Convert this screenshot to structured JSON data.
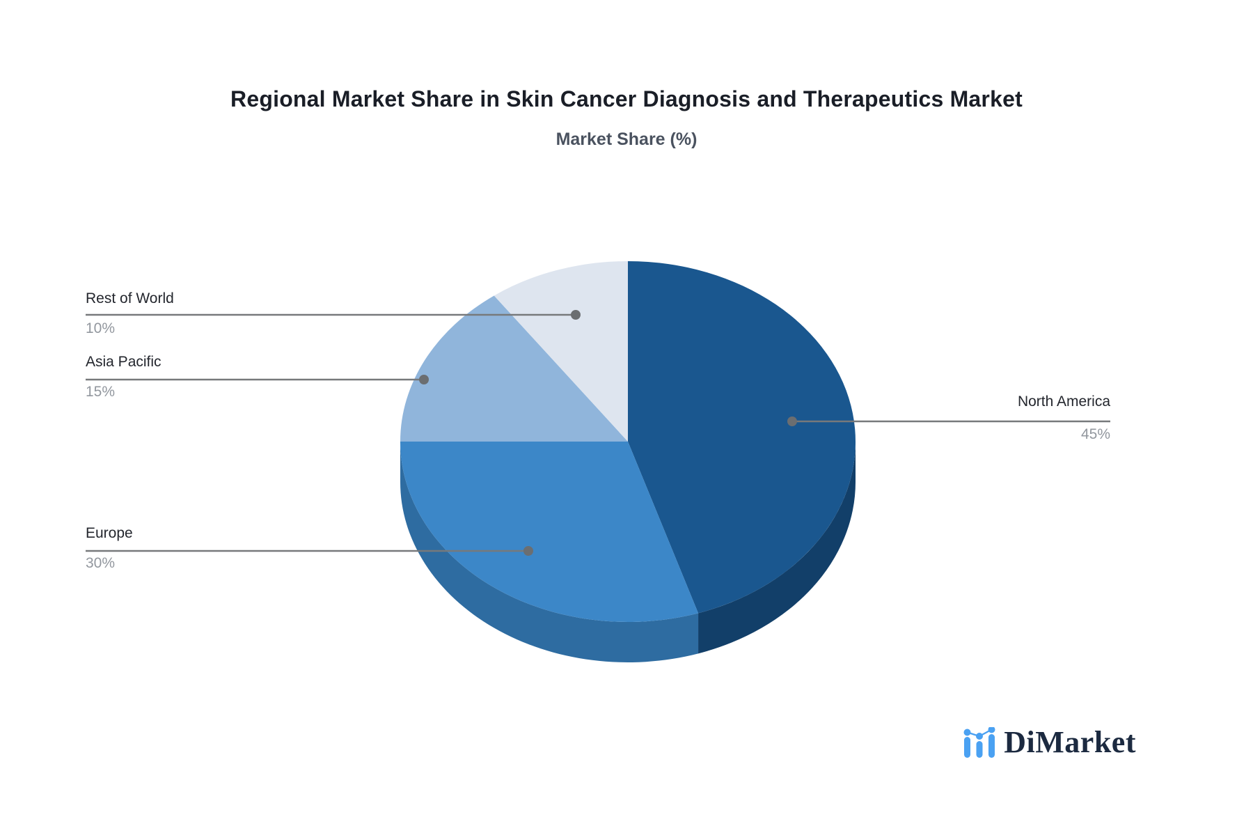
{
  "chart_data": {
    "type": "pie",
    "style": "3d",
    "title": "Regional Market Share in Skin Cancer Diagnosis and Therapeutics Market",
    "subtitle": "Market Share (%)",
    "unit": "%",
    "direction": "clockwise",
    "start_angle_deg": 0,
    "legend_position": "callout-labels",
    "slices": [
      {
        "label": "North America",
        "value": 45,
        "pct_label": "45%",
        "color": "#1A578F",
        "side_color": "#123F69"
      },
      {
        "label": "Europe",
        "value": 30,
        "pct_label": "30%",
        "color": "#3C87C8",
        "side_color": "#2E6CA1"
      },
      {
        "label": "Asia Pacific",
        "value": 15,
        "pct_label": "15%",
        "color": "#90B5DB",
        "side_color": "#7395B8"
      },
      {
        "label": "Rest of World",
        "value": 10,
        "pct_label": "10%",
        "color": "#DEE5EF",
        "side_color": "#B5BFCD"
      }
    ],
    "callout_line_color": "#77797B",
    "callout_dot_color": "#6B6E71"
  },
  "brand": {
    "name": "DiMarket",
    "icon": "bar-line-chart-icon",
    "icon_color": "#4AA1F2",
    "text_color": "#1C2A40"
  }
}
